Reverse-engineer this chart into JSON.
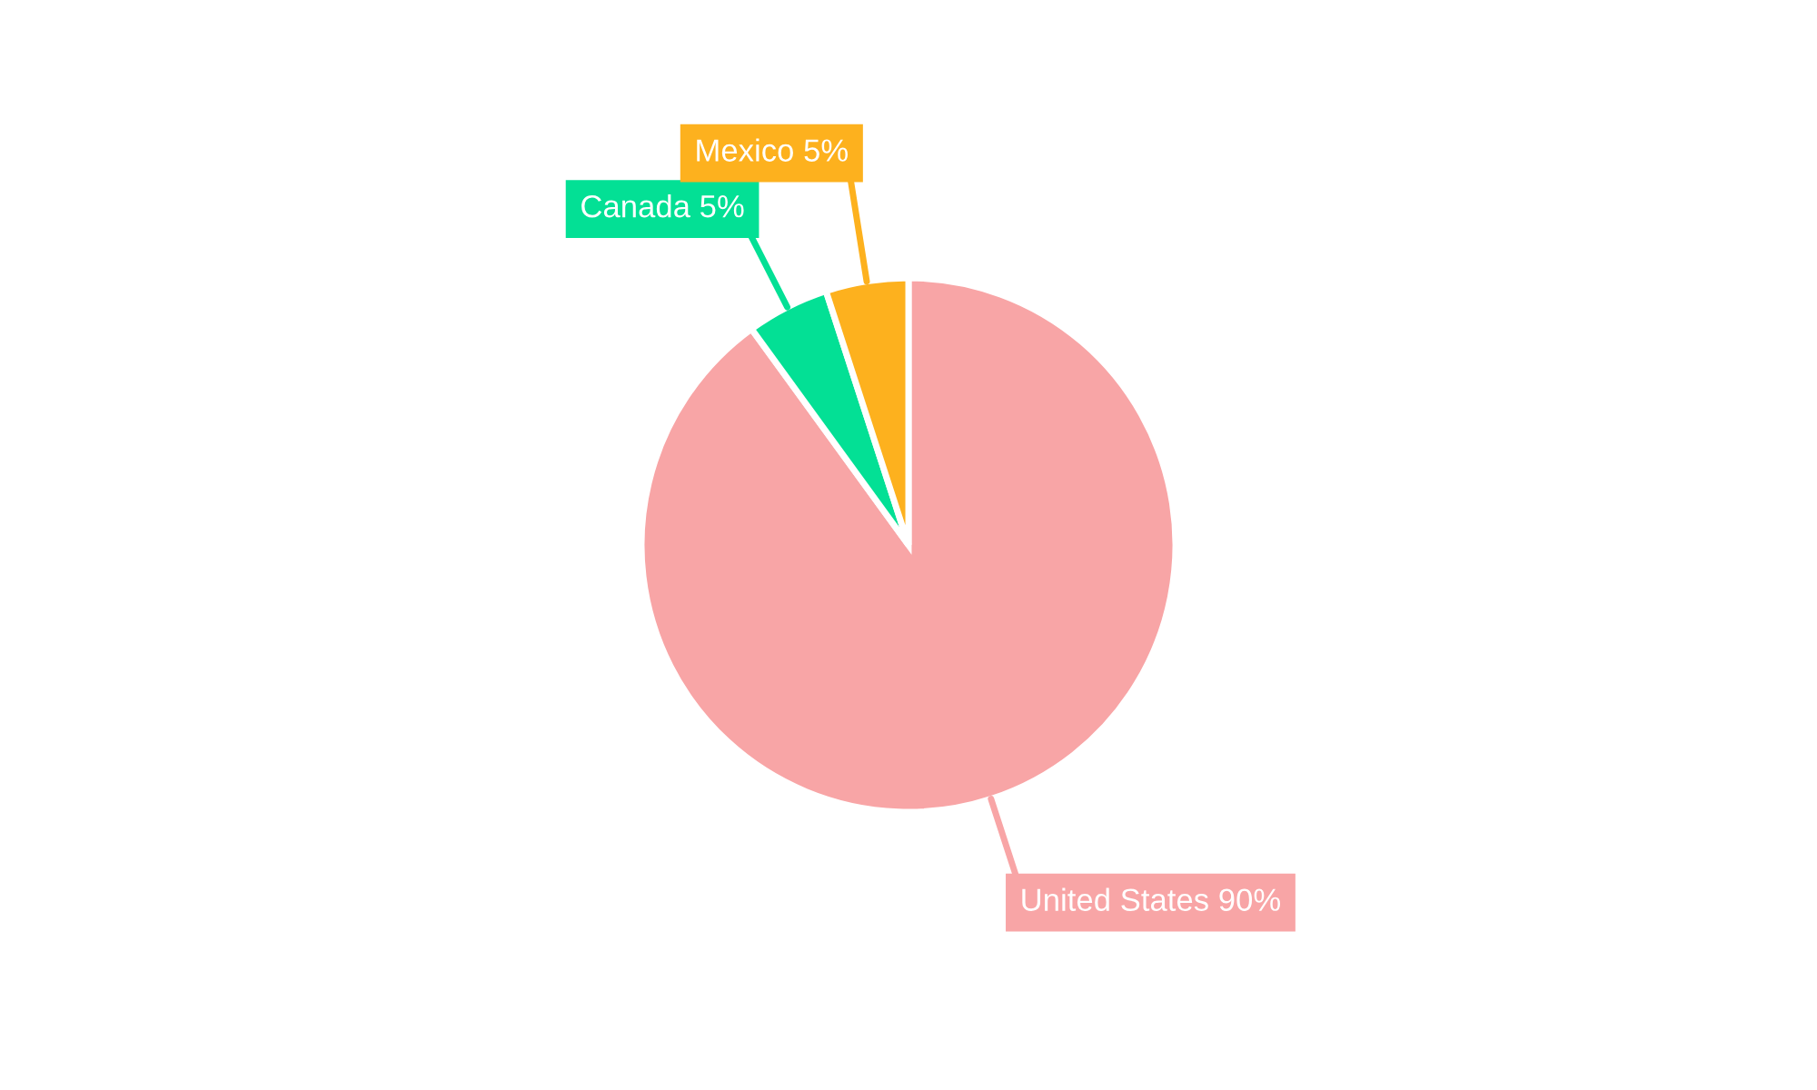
{
  "chart_data": {
    "type": "pie",
    "categories": [
      "United States",
      "Canada",
      "Mexico"
    ],
    "values": [
      90,
      5,
      5
    ],
    "colors": [
      "#f8a5a6",
      "#03e095",
      "#fdb11e"
    ],
    "value_labels": [
      "90%",
      "5%",
      "5%"
    ]
  }
}
